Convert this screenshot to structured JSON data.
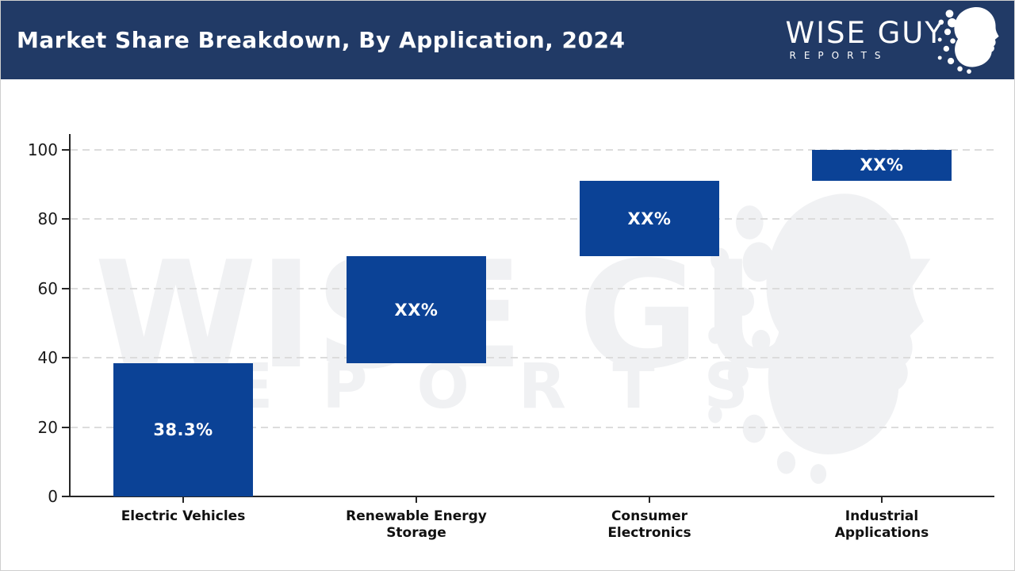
{
  "header": {
    "title": "Market Share Breakdown, By Application, 2024",
    "logo": {
      "line1": "WISE GUY",
      "line2": "REPORTS"
    }
  },
  "watermark": {
    "line1": "WISE GUY",
    "line2": "REPORTS"
  },
  "colors": {
    "header_bg": "#213a66",
    "bar": "#0b4296",
    "grid": "#dcdcdc",
    "axis": "#262626",
    "bar_label": "#ffffff",
    "watermark": "#f0f1f3"
  },
  "chart_data": {
    "type": "bar",
    "subtype": "waterfall",
    "title": "Market Share Breakdown, By Application, 2024",
    "categories": [
      "Electric Vehicles",
      "Renewable Energy\nStorage",
      "Consumer\nElectronics",
      "Industrial\nApplications"
    ],
    "values": [
      38.3,
      30.9,
      21.8,
      9.0
    ],
    "segments": [
      {
        "start": 0,
        "end": 38.3,
        "label": "38.3%"
      },
      {
        "start": 38.3,
        "end": 69.2,
        "label": "XX%"
      },
      {
        "start": 69.2,
        "end": 91.0,
        "label": "XX%"
      },
      {
        "start": 91.0,
        "end": 100.0,
        "label": "XX%"
      }
    ],
    "yticks": [
      0,
      20,
      40,
      60,
      80,
      100
    ],
    "ylim": [
      0,
      104.5
    ],
    "xlabel": "",
    "ylabel": "",
    "grid": "horizontal-dashed",
    "legend": "none"
  }
}
